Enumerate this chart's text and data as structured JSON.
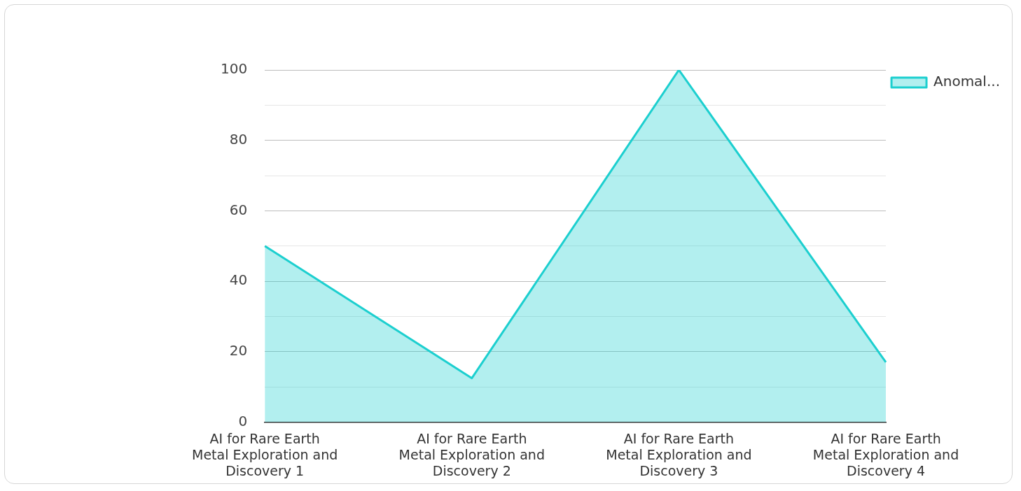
{
  "chart_data": {
    "type": "area",
    "categories": [
      "AI for Rare Earth Metal Exploration and Discovery 1",
      "AI for Rare Earth Metal Exploration and Discovery 2",
      "AI for Rare Earth Metal Exploration and Discovery 3",
      "AI for Rare Earth Metal Exploration and Discovery 4"
    ],
    "series": [
      {
        "name": "Anomal...",
        "color": "#1ccfcf",
        "values": [
          50,
          12.5,
          100,
          17
        ]
      }
    ],
    "ylim": [
      0,
      100
    ],
    "yticks": [
      0,
      {
        "value": 10,
        "label": null
      },
      20,
      {
        "value": 30,
        "label": null
      },
      40,
      {
        "value": 50,
        "label": null
      },
      60,
      {
        "value": 70,
        "label": null
      },
      80,
      {
        "value": 90,
        "label": null
      },
      100
    ],
    "grid": "y",
    "legend": "top right"
  }
}
